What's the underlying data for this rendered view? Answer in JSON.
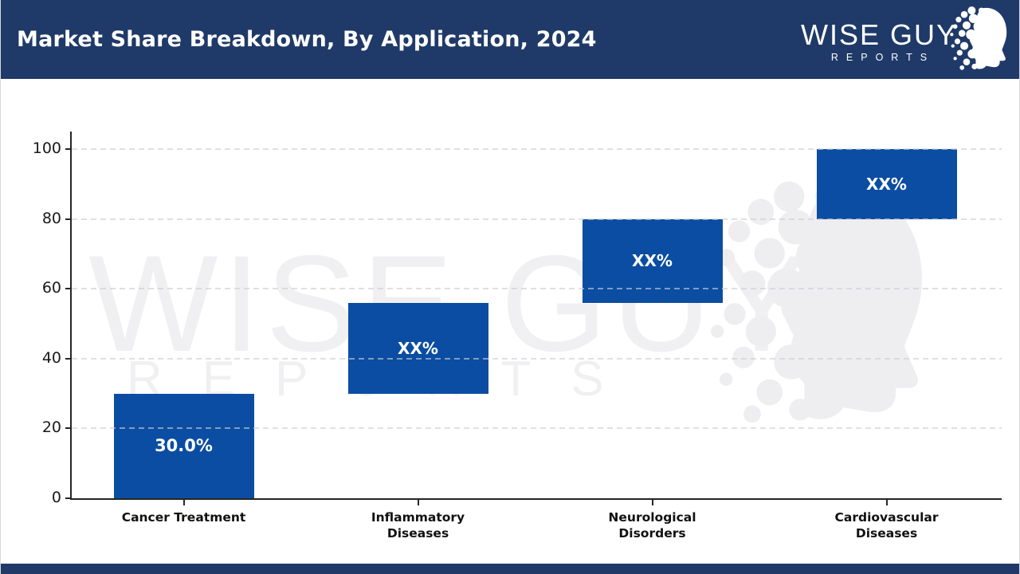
{
  "header": {
    "title": "Market Share Breakdown, By Application, 2024"
  },
  "brand": {
    "name_top": "WISE GUY",
    "name_bottom": "REPORTS",
    "face_icon": "dotted-head-profile"
  },
  "watermark": {
    "text_top": "WISE GUY",
    "text_bottom": "REPORTS",
    "face_icon": "dotted-head-profile"
  },
  "colors": {
    "header_bg": "#1f3a68",
    "footer_bg": "#1f3a68",
    "bar": "#0b4da2",
    "bar_label": "#ffffff",
    "grid": "#e0e0e0",
    "axis": "#262626",
    "watermark": "#f0f0f2"
  },
  "chart_data": {
    "type": "bar",
    "variant": "waterfall-stacked-breakdown",
    "title": "Market Share Breakdown, By Application, 2024",
    "categories": [
      "Cancer Treatment",
      "Inflammatory Diseases",
      "Neurological Disorders",
      "Cardiovascular Diseases"
    ],
    "category_label_lines": [
      [
        "Cancer Treatment"
      ],
      [
        "Inflammatory",
        "Diseases"
      ],
      [
        "Neurological",
        "Disorders"
      ],
      [
        "Cardiovascular",
        "Diseases"
      ]
    ],
    "segments": [
      {
        "category": "Cancer Treatment",
        "start": 0,
        "end": 30,
        "value": 30,
        "label": "30.0%"
      },
      {
        "category": "Inflammatory Diseases",
        "start": 30,
        "end": 56,
        "value": 26,
        "label": "XX%"
      },
      {
        "category": "Neurological Disorders",
        "start": 56,
        "end": 80,
        "value": 24,
        "label": "XX%"
      },
      {
        "category": "Cardiovascular Diseases",
        "start": 80,
        "end": 100,
        "value": 20,
        "label": "XX%"
      }
    ],
    "xlabel": "",
    "ylabel": "",
    "yticks": [
      0,
      20,
      40,
      60,
      80,
      100
    ],
    "ylim": [
      0,
      105
    ],
    "grid": "horizontal-dashed-over-bars",
    "legend": "none",
    "bar_color": "#0b4da2",
    "bar_label_color": "#ffffff"
  }
}
